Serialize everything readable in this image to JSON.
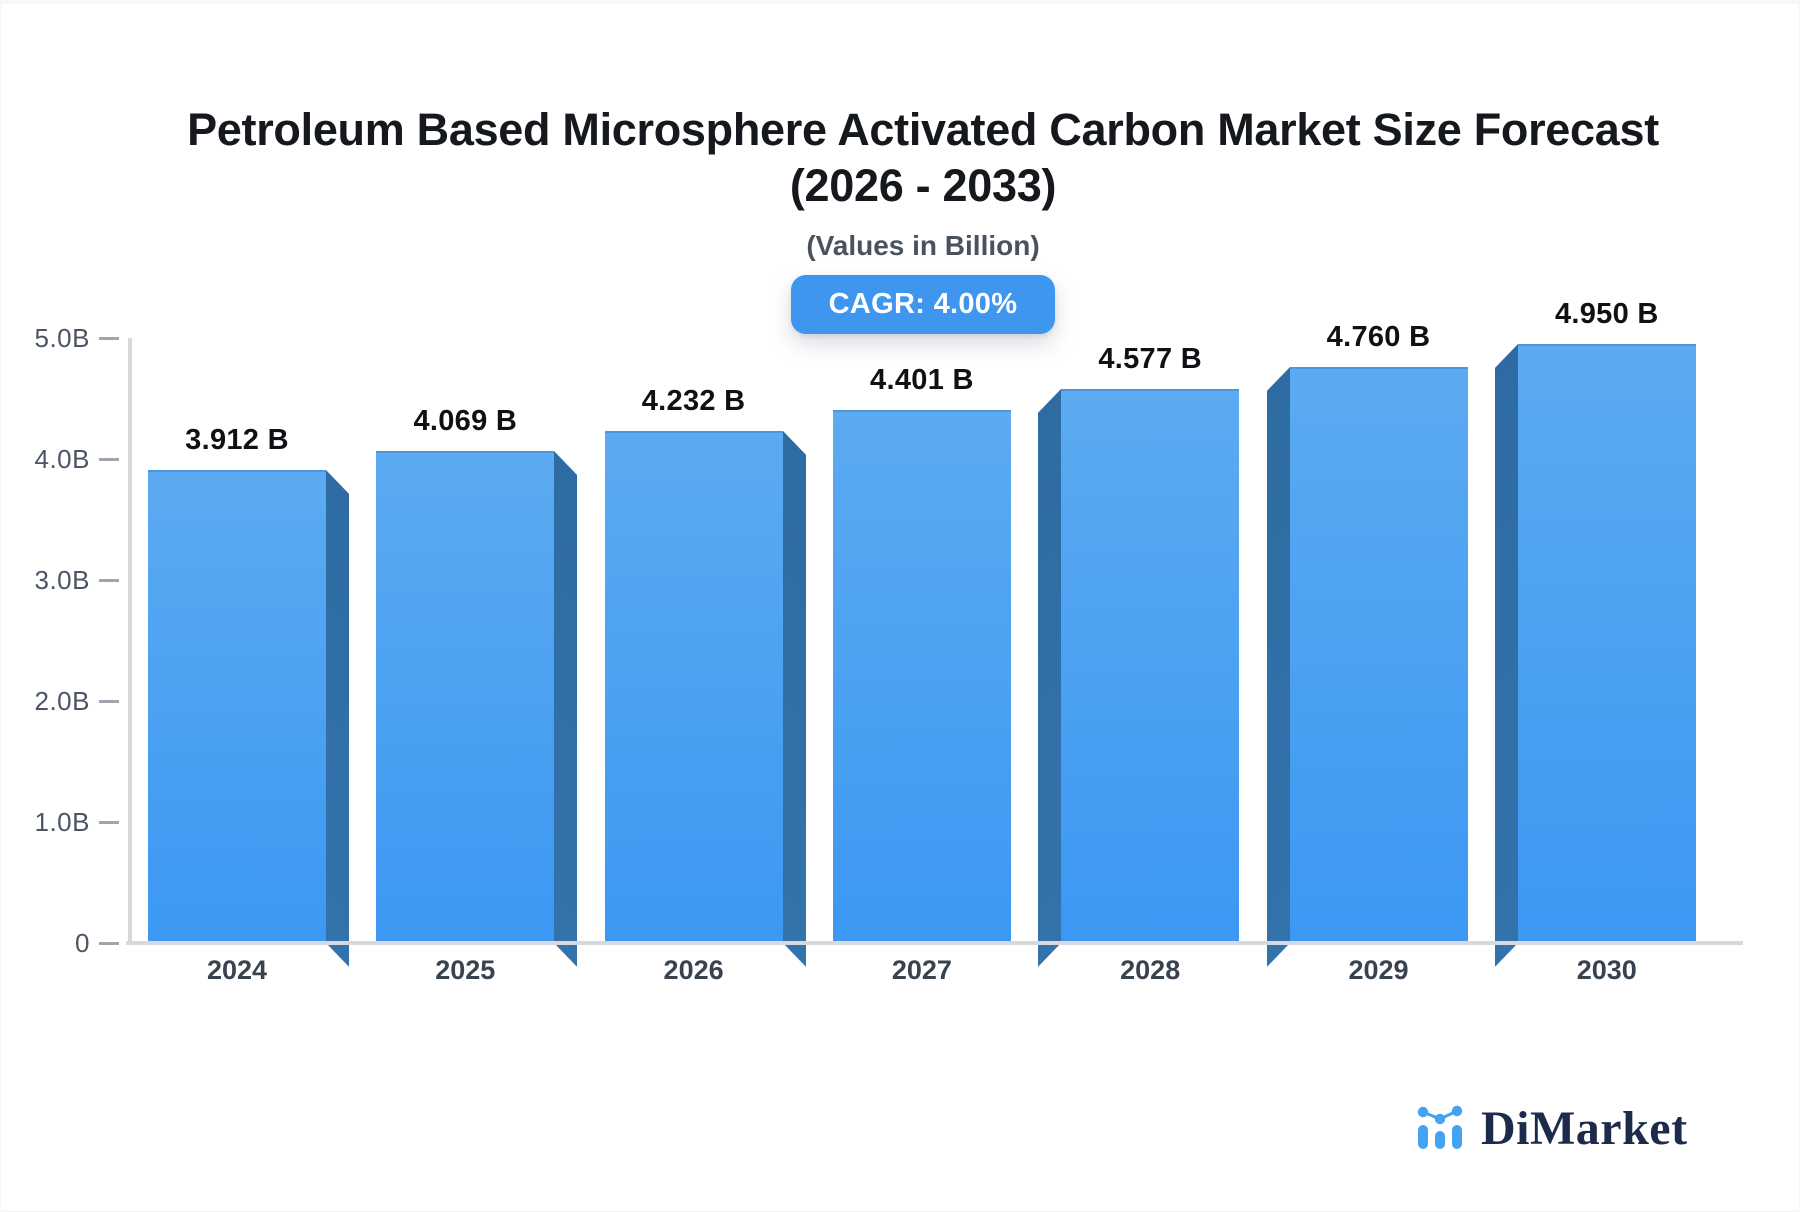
{
  "chart_data": {
    "type": "bar",
    "title": "Petroleum Based Microsphere Activated Carbon Market Size Forecast (2026 - 2033)",
    "subtitle": "(Values in Billion)",
    "cagr_badge": "CAGR: 4.00%",
    "categories": [
      "2024",
      "2025",
      "2026",
      "2027",
      "2028",
      "2029",
      "2030"
    ],
    "values": [
      3.912,
      4.069,
      4.232,
      4.401,
      4.577,
      4.76,
      4.95
    ],
    "value_labels": [
      "3.912 B",
      "4.069 B",
      "4.232 B",
      "4.401 B",
      "4.577 B",
      "4.760 B",
      "4.950 B"
    ],
    "unit": "B",
    "xlabel": "",
    "ylabel": "",
    "ylim": [
      0,
      5
    ],
    "yticks": {
      "values": [
        5,
        4,
        3,
        2,
        1,
        0
      ],
      "labels": [
        "5.0B",
        "4.0B",
        "3.0B",
        "2.0B",
        "1.0B",
        "0"
      ]
    },
    "grid": false,
    "legend": false,
    "bar_colors": {
      "face_top": "#5CAAF1",
      "face_bottom": "#3C98F3",
      "side": "#2E6BA3",
      "top_edge": "#4C97D9"
    }
  },
  "colors": {
    "badge_bg": "#3E96EF",
    "badge_text": "#FFFFFF",
    "axis_line": "#D7D9DE",
    "tick_dash": "#9FA5AE",
    "tick_label": "#4B5564",
    "year_label": "#39434F",
    "value_label": "#0F1114",
    "title": "#15181C",
    "subtitle": "#4A5260"
  },
  "footer": {
    "brand": "DiMarket",
    "brand_color": "#1C2B4B",
    "icon_color": "#45A1F1",
    "icon": "mini-bar-line-chart"
  }
}
